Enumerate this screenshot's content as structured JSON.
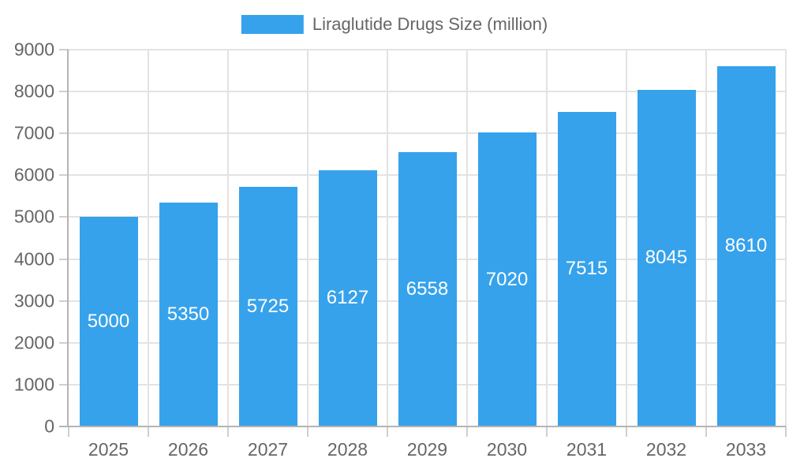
{
  "chart_data": {
    "type": "bar",
    "title": "Liraglutide Drugs Size (million)",
    "legend": {
      "position": "top-center",
      "entries": [
        "Liraglutide Drugs Size (million)"
      ]
    },
    "categories": [
      "2025",
      "2026",
      "2027",
      "2028",
      "2029",
      "2030",
      "2031",
      "2032",
      "2033"
    ],
    "values": [
      5000,
      5350,
      5725,
      6127,
      6558,
      7020,
      7515,
      8045,
      8610
    ],
    "xlabel": "",
    "ylabel": "",
    "ylim": [
      0,
      9000
    ],
    "ytick_step": 1000,
    "grid": true,
    "value_labels": "inside-center-white",
    "colors": {
      "bar": "#36A2EB",
      "grid": "#e3e3e3",
      "axis": "#b4b4b4",
      "tick": "#cfcfcf",
      "label": "#666666",
      "value_label": "#ffffff",
      "background": "#ffffff"
    }
  }
}
